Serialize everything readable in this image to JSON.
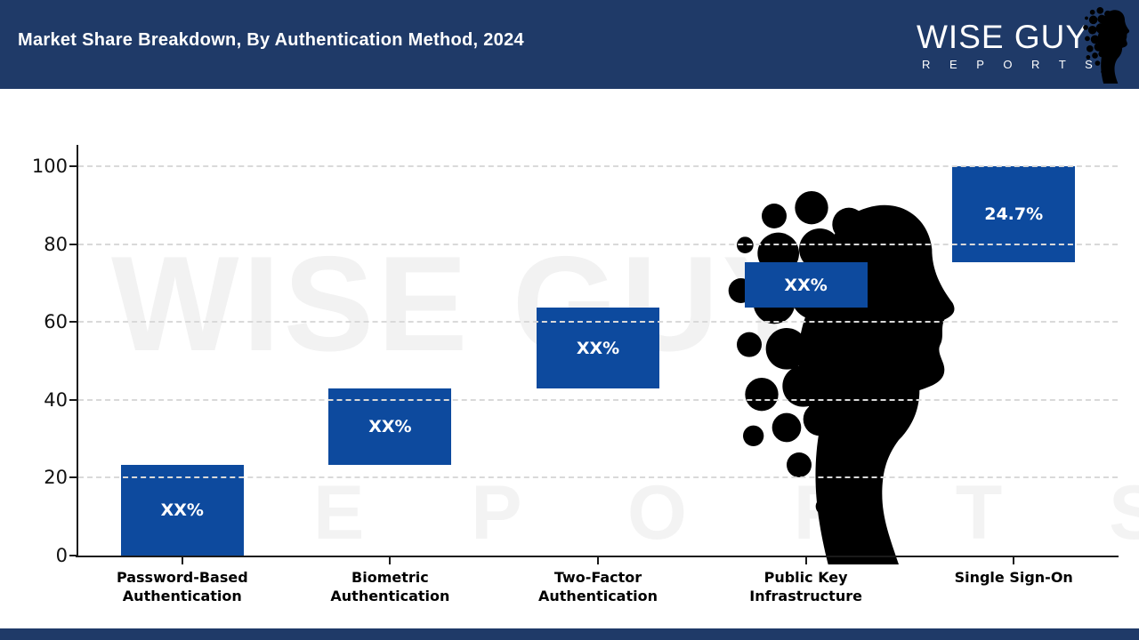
{
  "header": {
    "title": "Market Share Breakdown, By Authentication Method, 2024",
    "logo_line1": "WISE GUY",
    "logo_line2": "R E P O R T S",
    "bg_color": "#1f3a68"
  },
  "watermark": {
    "line1": "WISE GUY",
    "line2": "R E P O R T S"
  },
  "chart_data": {
    "type": "bar",
    "subtype": "waterfall",
    "title": "Market Share Breakdown, By Authentication Method, 2024",
    "categories": [
      "Password-Based\nAuthentication",
      "Biometric\nAuthentication",
      "Two-Factor\nAuthentication",
      "Public Key\nInfrastructure",
      "Single Sign-On"
    ],
    "segments": [
      {
        "category": "Password-Based Authentication",
        "start": 0,
        "end": 23.3,
        "label": "XX%"
      },
      {
        "category": "Biometric Authentication",
        "start": 23.3,
        "end": 42.9,
        "label": "XX%"
      },
      {
        "category": "Two-Factor Authentication",
        "start": 42.9,
        "end": 63.6,
        "label": "XX%"
      },
      {
        "category": "Public Key Infrastructure",
        "start": 63.6,
        "end": 75.3,
        "label": "XX%"
      },
      {
        "category": "Single Sign-On",
        "start": 75.3,
        "end": 100,
        "label": "24.7%"
      }
    ],
    "xlabel": "",
    "ylabel": "",
    "ylim": [
      0,
      100
    ],
    "yticks": [
      0,
      20,
      40,
      60,
      80,
      100
    ],
    "grid": "horizontal-dashed",
    "legend": "none",
    "bar_color": "#0d4a9e",
    "bar_label_color": "#ffffff"
  },
  "footer": {
    "bg_color": "#1f3a68"
  }
}
